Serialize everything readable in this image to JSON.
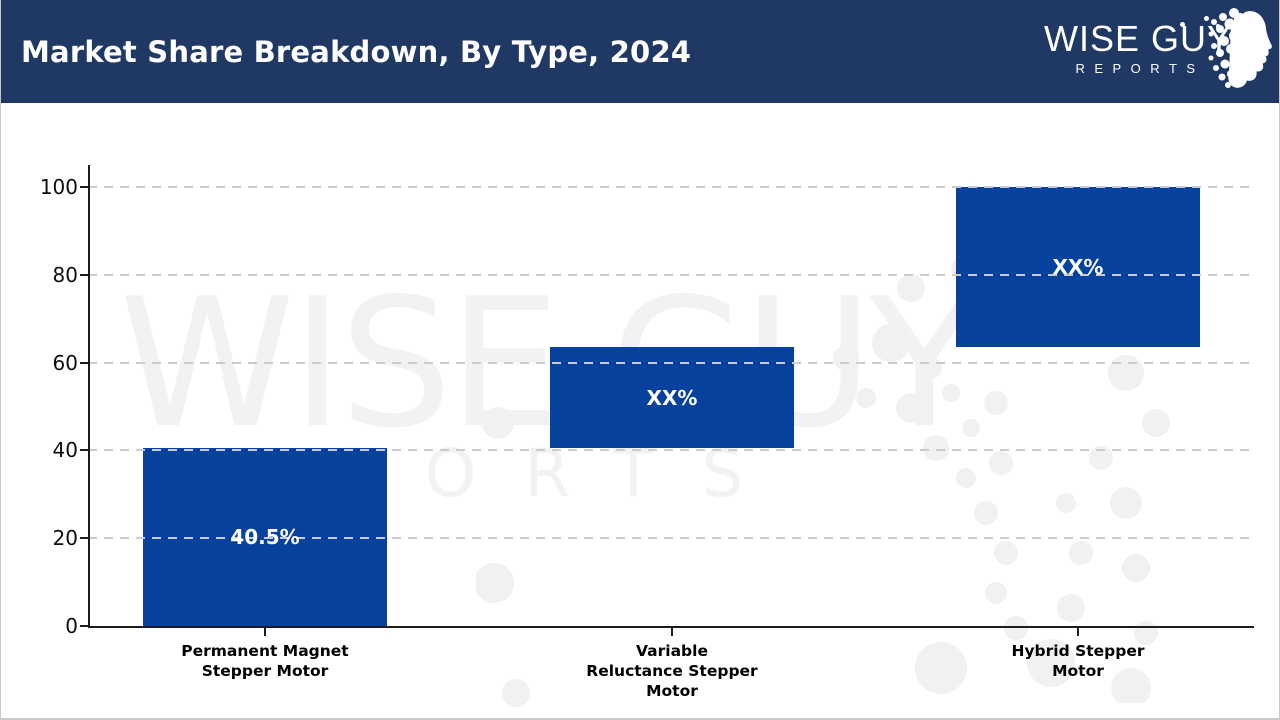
{
  "header": {
    "title": "Market Share Breakdown, By Type, 2024"
  },
  "logo": {
    "line1": "WISE GUY",
    "line2": "REPORTS"
  },
  "watermark": {
    "line1": "WISE GUY",
    "line2": "REPORTS"
  },
  "colors": {
    "header_bg": "#1f3864",
    "bar": "#06419e",
    "grid": "#cbcbcb",
    "axis": "#1c1c1c",
    "watermark": "#f2f2f4"
  },
  "chart_data": {
    "type": "bar",
    "subtype": "stacked-waterfall-segments",
    "title": "Market Share Breakdown, By Type, 2024",
    "categories": [
      "Permanent Magnet Stepper Motor",
      "Variable Reluctance Stepper Motor",
      "Hybrid Stepper Motor"
    ],
    "category_lines": [
      [
        "Permanent Magnet",
        "Stepper Motor"
      ],
      [
        "Variable",
        "Reluctance Stepper",
        "Motor"
      ],
      [
        "Hybrid Stepper",
        "Motor"
      ]
    ],
    "bars": [
      {
        "category": "Permanent Magnet Stepper Motor",
        "from": 0,
        "to": 40.5,
        "label": "40.5%"
      },
      {
        "category": "Variable Reluctance Stepper Motor",
        "from": 40.5,
        "to": 63.5,
        "label": "XX%"
      },
      {
        "category": "Hybrid Stepper Motor",
        "from": 63.5,
        "to": 100,
        "label": "XX%"
      }
    ],
    "xlabel": "",
    "ylabel": "",
    "ylim": [
      0,
      100
    ],
    "yticks": [
      0,
      20,
      40,
      60,
      80,
      100
    ],
    "grid": "horizontal dashed, drawn above bars",
    "legend": "none",
    "bar_color": "#06419e"
  }
}
